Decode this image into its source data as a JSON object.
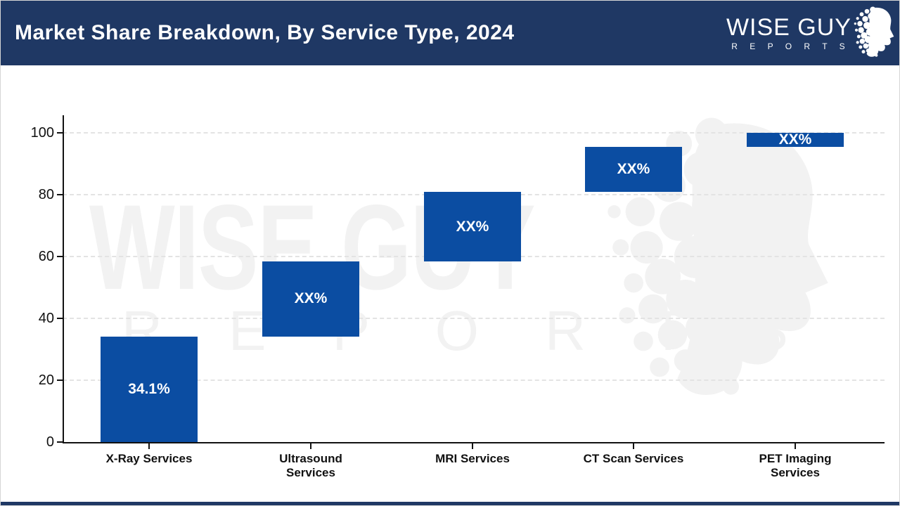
{
  "header": {
    "title": "Market Share Breakdown, By Service Type, 2024",
    "logo": {
      "line1": "WISE GUY",
      "line2": "R E P O R T S",
      "face_icon": "dotted-head-profile"
    }
  },
  "watermark": {
    "line1": "WISE GUY",
    "line2": "R E P O R T S",
    "face_icon": "dotted-head-profile"
  },
  "colors": {
    "header_bg": "#1f3864",
    "footer_bg": "#1f3864",
    "bar": "#0b4da2",
    "bar_label_text": "#ffffff",
    "grid": "#e3e3e3",
    "axis": "#111111",
    "tick_label_text": "#111111",
    "watermark_text": "#f2f2f2"
  },
  "chart_data": {
    "type": "bar",
    "subtype": "waterfall",
    "title": "Market Share Breakdown, By Service Type, 2024",
    "categories": [
      "X-Ray Services",
      "Ultrasound Services",
      "MRI Services",
      "CT Scan Services",
      "PET Imaging Services"
    ],
    "category_label_lines": [
      [
        "X-Ray Services"
      ],
      [
        "Ultrasound",
        "Services"
      ],
      [
        "MRI Services"
      ],
      [
        "CT Scan Services"
      ],
      [
        "PET Imaging",
        "Services"
      ]
    ],
    "segments": [
      {
        "category": "X-Ray Services",
        "start": 0,
        "end": 34.1,
        "label": "34.1%"
      },
      {
        "category": "Ultrasound Services",
        "start": 34.1,
        "end": 58.3,
        "label": "XX%"
      },
      {
        "category": "MRI Services",
        "start": 58.3,
        "end": 80.8,
        "label": "XX%"
      },
      {
        "category": "CT Scan Services",
        "start": 80.8,
        "end": 95.3,
        "label": "XX%"
      },
      {
        "category": "PET Imaging Services",
        "start": 95.3,
        "end": 100,
        "label": "XX%"
      }
    ],
    "y_ticks": [
      0,
      20,
      40,
      60,
      80,
      100
    ],
    "ylim": [
      0,
      105.5
    ],
    "xlabel": "",
    "ylabel": "",
    "grid": "horizontal-dashed",
    "legend": "none",
    "bar_color": "#0b4da2"
  }
}
